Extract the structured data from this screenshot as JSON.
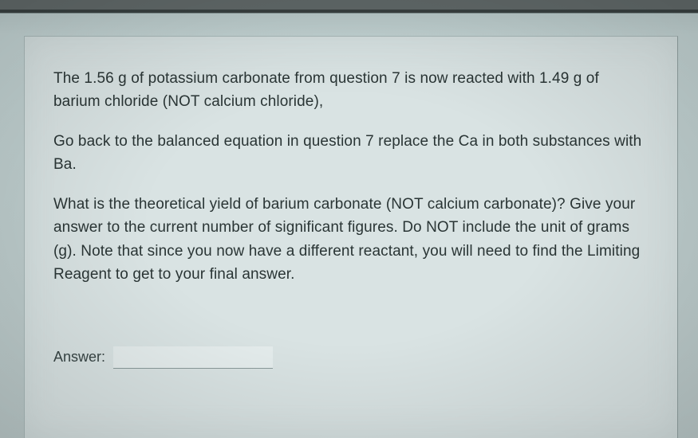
{
  "question": {
    "paragraph1": "The 1.56 g of potassium carbonate from question 7 is now reacted with 1.49 g of barium chloride (NOT calcium chloride),",
    "paragraph2": "Go back to the balanced equation in question 7 replace the Ca in both substances with Ba.",
    "paragraph3": "What is the theoretical yield of barium carbonate (NOT calcium carbonate)? Give your answer to the current number of significant figures. Do NOT include the unit of grams (g).  Note that since you now have a different reactant, you will need to find the Limiting Reagent to get to your final answer."
  },
  "answer": {
    "label": "Answer:",
    "value": ""
  },
  "colors": {
    "panel_bg": "#d9e3e3",
    "text": "#2a3535",
    "outer_bg": "#bac8c8"
  }
}
